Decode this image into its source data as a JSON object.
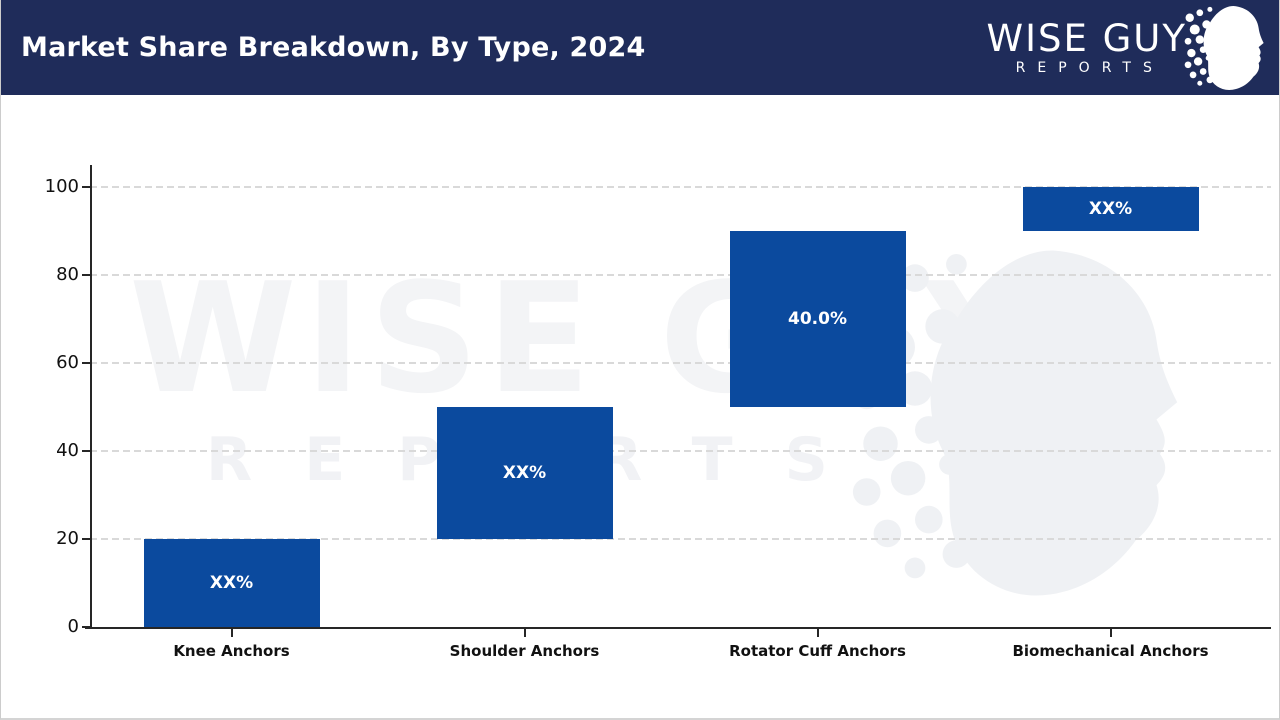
{
  "header": {
    "title": "Market Share Breakdown, By Type, 2024",
    "bg_color": "#1F2C5A",
    "logo": {
      "line1": "WISE GUY",
      "line2": "REPORTS"
    }
  },
  "watermark": {
    "line1": "WISE GUY",
    "line2": "REPORTS"
  },
  "chart_data": {
    "type": "bar",
    "subtype": "waterfall",
    "title": "Market Share Breakdown, By Type, 2024",
    "categories": [
      "Knee Anchors",
      "Shoulder Anchors",
      "Rotator Cuff Anchors",
      "Biomechanical Anchors"
    ],
    "series": [
      {
        "name": "Market Share",
        "segments": [
          {
            "category": "Knee Anchors",
            "start": 0,
            "end": 20,
            "label": "XX%"
          },
          {
            "category": "Shoulder Anchors",
            "start": 20,
            "end": 50,
            "label": "XX%"
          },
          {
            "category": "Rotator Cuff Anchors",
            "start": 50,
            "end": 90,
            "label": "40.0%"
          },
          {
            "category": "Biomechanical Anchors",
            "start": 90,
            "end": 100,
            "label": "XX%"
          }
        ]
      }
    ],
    "bar_labels_displayed": [
      "XX%",
      "XX%",
      "40.0%",
      "XX%"
    ],
    "yticks": [
      0,
      20,
      40,
      60,
      80,
      100
    ],
    "ylim": [
      0,
      105
    ],
    "xlabel": "",
    "ylabel": "",
    "grid": "horizontal-dashed",
    "legend": "none",
    "bar_color": "#0B4A9E",
    "gridline_color": "#D9D9D9",
    "axis_color": "#262626"
  }
}
